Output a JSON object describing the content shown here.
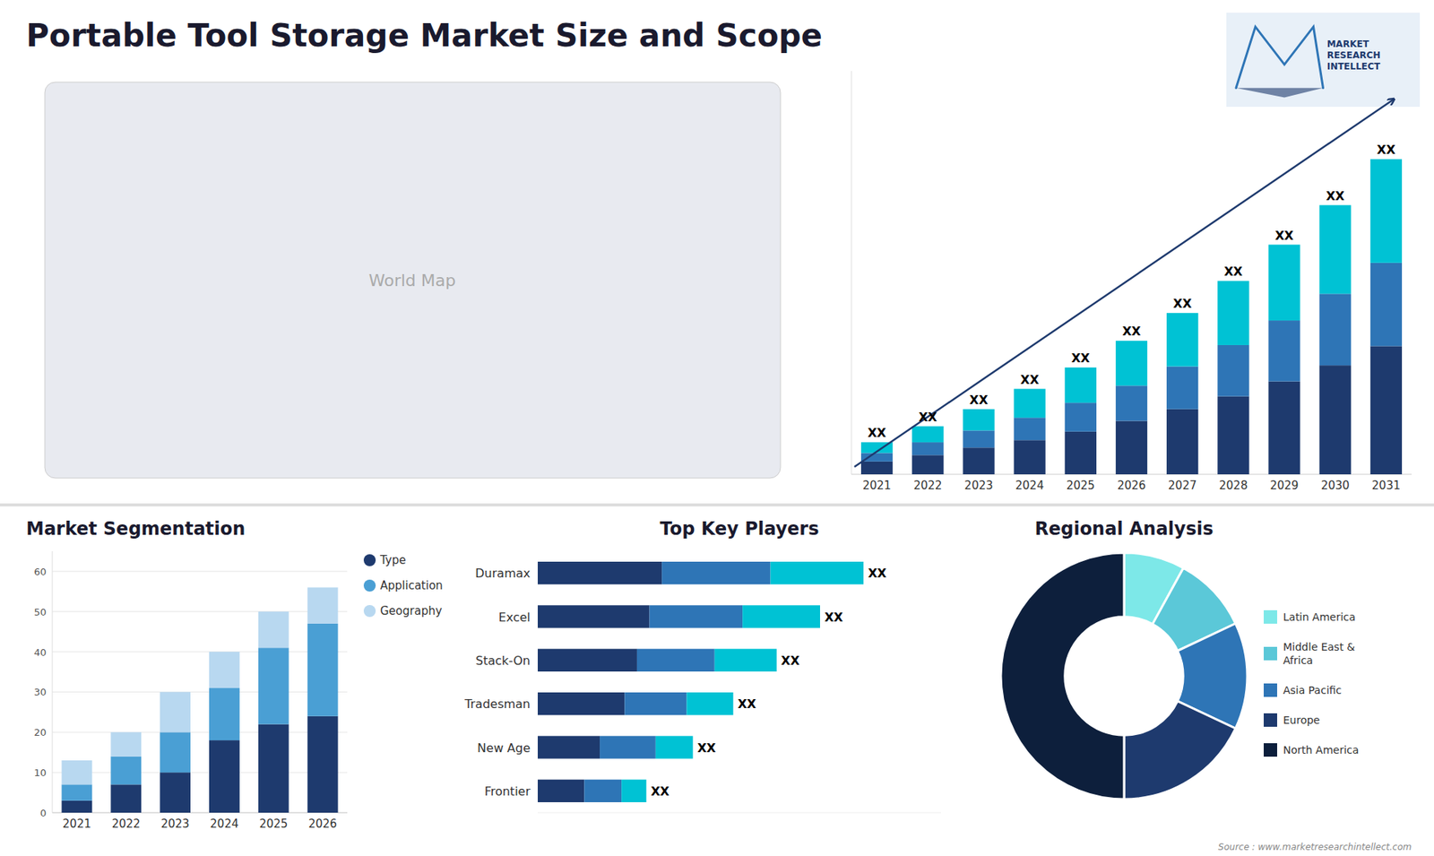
{
  "title": "Portable Tool Storage Market Size and Scope",
  "annotations": [
    "MARKET\nRESEARCH\nINTELLECT",
    "World Map",
    "Source : www.marketresearchintellect.com"
  ],
  "chart_data": [
    {
      "type": "bar",
      "stacked": true,
      "categories": [
        "2021",
        "2022",
        "2023",
        "2024",
        "2025",
        "2026",
        "2027",
        "2028",
        "2029",
        "2030",
        "2031"
      ],
      "series": [
        {
          "color": "#1e3a6e",
          "values": [
            1.2,
            1.8,
            2.5,
            3.2,
            4.0,
            5.0,
            6.1,
            7.3,
            8.7,
            10.2,
            12.0
          ]
        },
        {
          "color": "#2e75b6",
          "values": [
            0.8,
            1.2,
            1.6,
            2.1,
            2.7,
            3.3,
            4.0,
            4.8,
            5.7,
            6.7,
            7.8
          ]
        },
        {
          "color": "#00c2d4",
          "values": [
            1.0,
            1.5,
            2.0,
            2.7,
            3.3,
            4.2,
            5.0,
            6.0,
            7.1,
            8.3,
            9.7
          ]
        }
      ],
      "ylim": [
        0,
        37.76
      ],
      "tick_labels": "x",
      "annotations": [
        "XX",
        "XX",
        "XX",
        "XX",
        "XX",
        "XX",
        "XX",
        "XX",
        "XX",
        "XX",
        "XX"
      ]
    },
    {
      "type": "bar",
      "title": "Market Segmentation",
      "stacked": true,
      "categories": [
        "2021",
        "2022",
        "2023",
        "2024",
        "2025",
        "2026"
      ],
      "series": [
        {
          "name": "Type",
          "color": "#1e3a6e",
          "values": [
            3,
            7,
            10,
            18,
            22,
            24
          ]
        },
        {
          "name": "Application",
          "color": "#4a9fd4",
          "values": [
            4,
            7,
            10,
            13,
            19,
            23
          ]
        },
        {
          "name": "Geography",
          "color": "#b8d8f0",
          "values": [
            6,
            6,
            10,
            9,
            9,
            9
          ]
        }
      ],
      "ylim": [
        0,
        65
      ],
      "yticks": [
        0,
        10,
        20,
        30,
        40,
        50,
        60
      ],
      "grid": true,
      "legend": "right"
    },
    {
      "type": "bar",
      "title": "Top Key Players",
      "orientation": "horizontal",
      "stacked": true,
      "categories": [
        "Duramax",
        "Excel",
        "Stack-On",
        "Tradesman",
        "New Age",
        "Frontier"
      ],
      "series": [
        {
          "color": "#1e3a6e",
          "values": [
            4.0,
            3.6,
            3.2,
            2.8,
            2.0,
            1.5
          ]
        },
        {
          "color": "#2e75b6",
          "values": [
            3.5,
            3.0,
            2.5,
            2.0,
            1.8,
            1.2
          ]
        },
        {
          "color": "#00c2d4",
          "values": [
            3.0,
            2.5,
            2.0,
            1.5,
            1.2,
            0.8
          ]
        }
      ],
      "xlim": [
        0,
        13
      ],
      "tick_labels": "y",
      "annotations": [
        "XX",
        "XX",
        "XX",
        "XX",
        "XX",
        "XX"
      ]
    },
    {
      "type": "pie",
      "title": "Regional Analysis",
      "categories": [
        "Latin America",
        "Middle East &\nAfrica",
        "Asia Pacific",
        "Europe",
        "North America"
      ],
      "values": [
        8,
        10,
        14,
        18,
        50
      ],
      "colors": [
        "#7de8e8",
        "#5bc8d8",
        "#2e75b6",
        "#1e3a6e",
        "#0d1f3c"
      ],
      "legend": "right"
    }
  ]
}
